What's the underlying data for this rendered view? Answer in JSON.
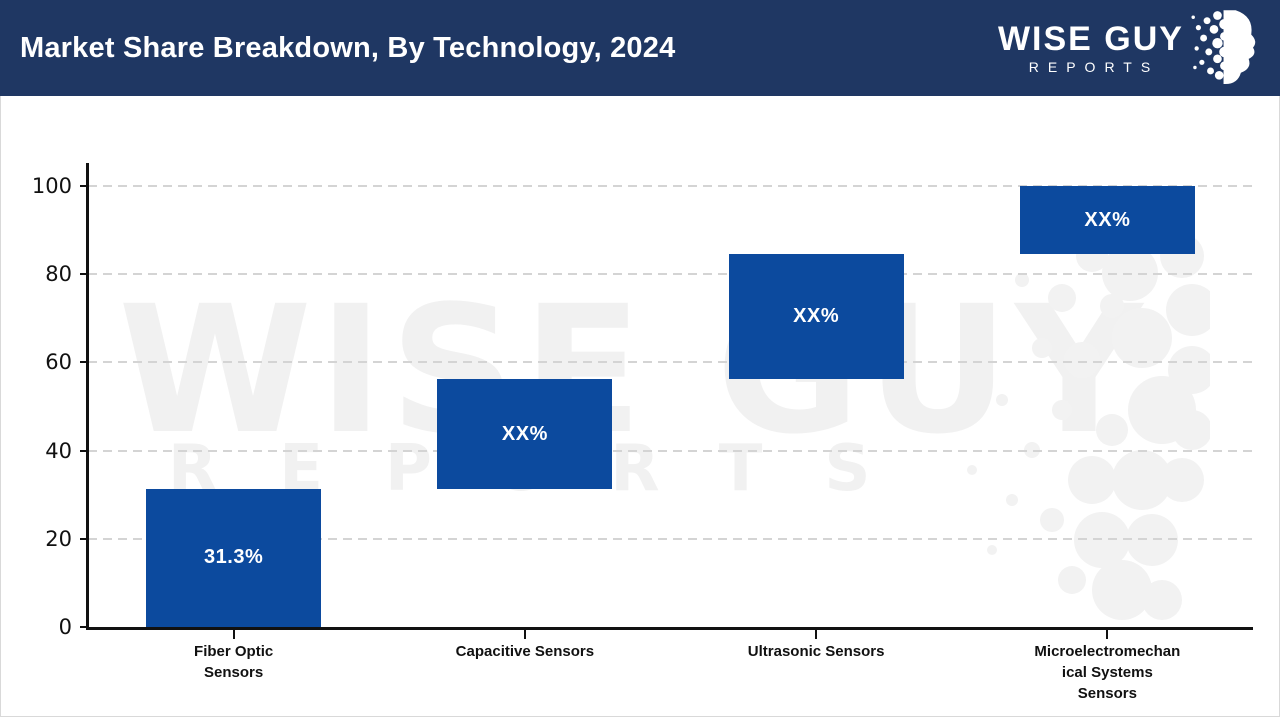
{
  "header": {
    "title": "Market Share Breakdown, By Technology, 2024",
    "logo": {
      "line1": "WISE GUY",
      "line2": "REPORTS"
    }
  },
  "watermark": {
    "line1": "WISE GUY",
    "line2": "REPORTS"
  },
  "chart_data": {
    "type": "waterfall",
    "title": "Market Share Breakdown, By Technology, 2024",
    "xlabel": "",
    "ylabel": "",
    "ylim": [
      0,
      105
    ],
    "yticks": [
      0,
      20,
      40,
      60,
      80,
      100
    ],
    "grid": "horizontal-dashed",
    "legend": "none",
    "bar_color": "#0c4a9e",
    "bar_label_color": "#ffffff",
    "grid_color": "#d4d4d4",
    "categories": [
      {
        "name": "Fiber Optic Sensors",
        "lines": [
          "Fiber Optic",
          "Sensors"
        ]
      },
      {
        "name": "Capacitive Sensors",
        "lines": [
          "Capacitive Sensors"
        ]
      },
      {
        "name": "Ultrasonic Sensors",
        "lines": [
          "Ultrasonic Sensors"
        ]
      },
      {
        "name": "Microelectromechanical Systems Sensors",
        "lines": [
          "Microelectromechan",
          "ical Systems",
          "Sensors"
        ]
      }
    ],
    "segments": [
      {
        "category": "Fiber Optic Sensors",
        "start": 0,
        "end": 31.3,
        "label": "31.3%"
      },
      {
        "category": "Capacitive Sensors",
        "start": 31.3,
        "end": 56.2,
        "label": "XX%"
      },
      {
        "category": "Ultrasonic Sensors",
        "start": 56.2,
        "end": 84.5,
        "label": "XX%"
      },
      {
        "category": "Microelectromechanical Systems Sensors",
        "start": 84.5,
        "end": 100,
        "label": "XX%"
      }
    ]
  }
}
